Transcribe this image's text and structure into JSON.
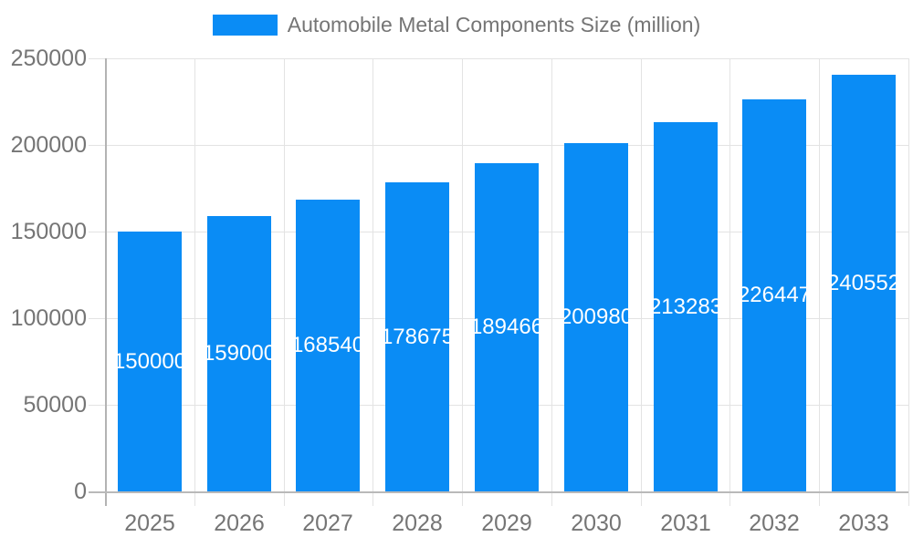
{
  "legend": {
    "label": "Automobile Metal Components Size (million)"
  },
  "chart_data": {
    "type": "bar",
    "title": "Automobile Metal Components Size (million)",
    "categories": [
      "2025",
      "2026",
      "2027",
      "2028",
      "2029",
      "2030",
      "2031",
      "2032",
      "2033"
    ],
    "values": [
      150000,
      159000,
      168540,
      178675,
      189466,
      200980,
      213283,
      226447,
      240552
    ],
    "yticks": [
      0,
      50000,
      100000,
      150000,
      200000,
      250000
    ],
    "ylim": [
      0,
      250000
    ],
    "xlabel": "",
    "ylabel": "",
    "legend_position": "top",
    "grid": "on",
    "value_labels": "inside-center",
    "colors": {
      "bar": "#0a8cf5",
      "bar_label": "#ffffff",
      "axis_text": "#757575",
      "gridline": "#e3e3e3",
      "axis_line": "#b3b3b3",
      "baseline": "#b9b9b9",
      "background": "#ffffff"
    }
  }
}
